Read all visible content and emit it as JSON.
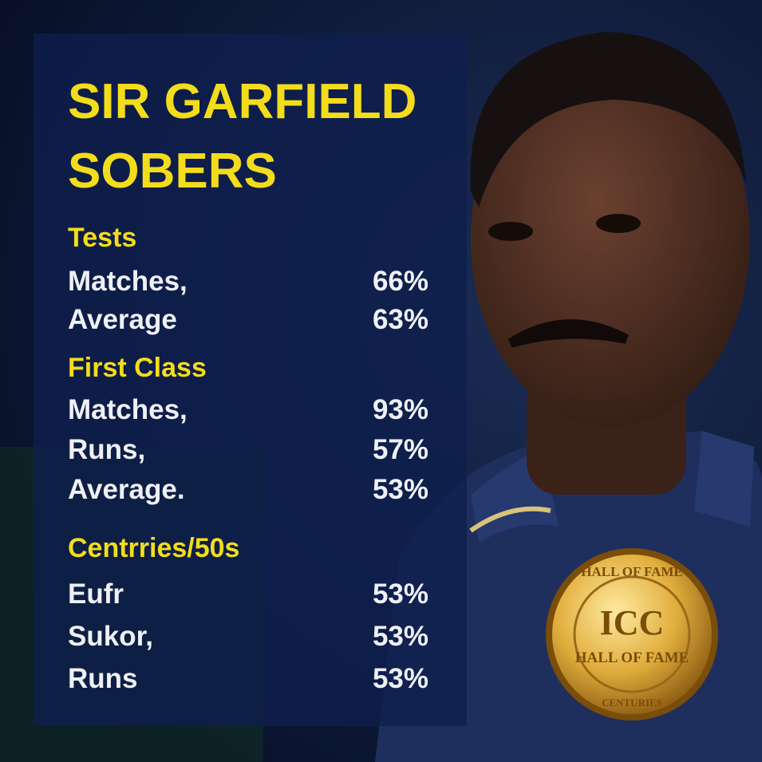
{
  "header": {
    "title_lines": [
      "SIR GARFIELD",
      "SOBERS"
    ]
  },
  "sections": [
    {
      "heading": "Tests",
      "rows": [
        [
          "Matches,",
          "66%"
        ],
        [
          "Average",
          "63%"
        ]
      ]
    },
    {
      "heading": "First Class",
      "rows": [
        [
          "Matches,",
          "93%"
        ],
        [
          "Runs,",
          "57%"
        ],
        [
          "Average.",
          "53%"
        ]
      ]
    },
    {
      "heading": "Centrries/50s",
      "rows": [
        [
          "Eufr",
          "53%"
        ],
        [
          "Sukor,",
          "53%"
        ],
        [
          "Runs",
          "53%"
        ]
      ]
    }
  ],
  "medal": {
    "top": "HALL OF FAME",
    "center": "ICC",
    "sub": "HALL OF FAME",
    "bottom": "CENTURIES"
  }
}
